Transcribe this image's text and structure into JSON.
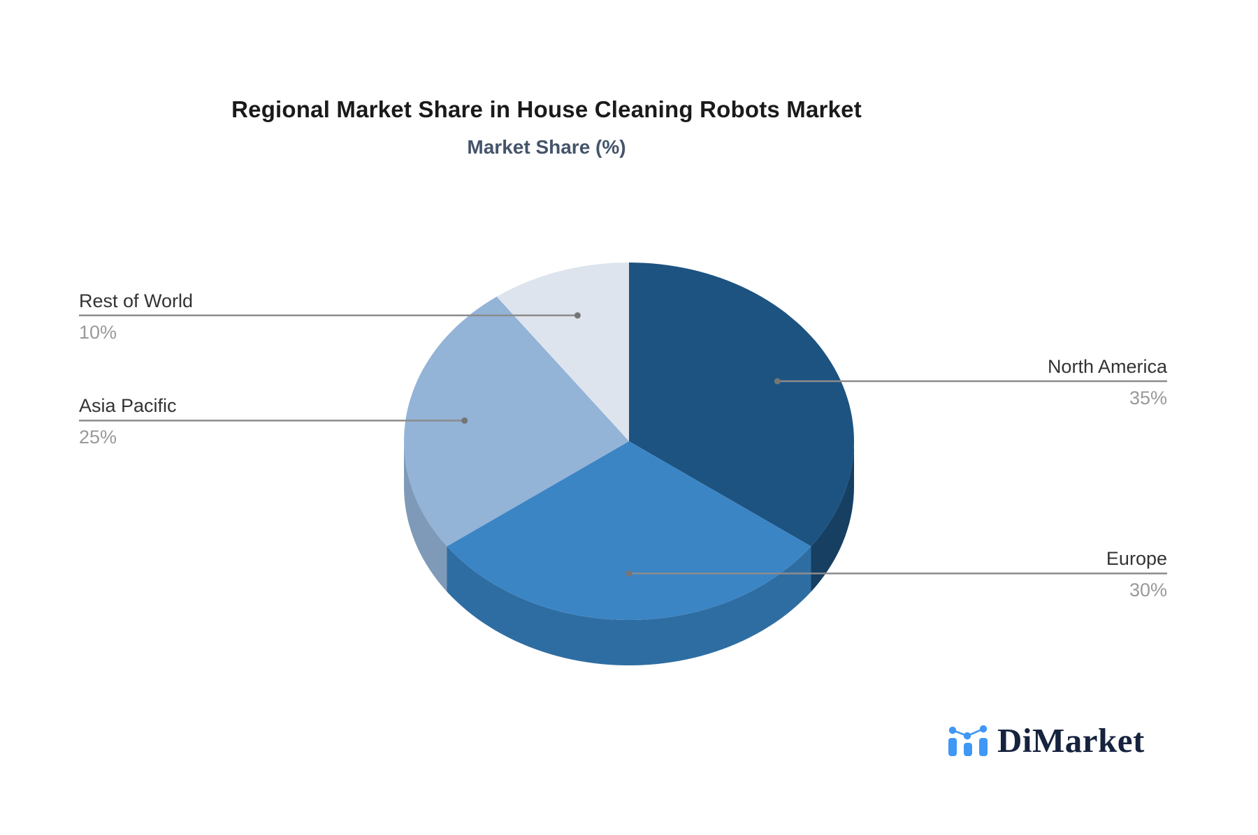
{
  "header": {
    "title": "Regional Market Share in House Cleaning Robots Market",
    "subtitle": "Market Share (%)"
  },
  "chart_data": {
    "type": "pie",
    "style": "3d",
    "title": "Regional Market Share in House Cleaning Robots Market",
    "subtitle": "Market Share (%)",
    "unit": "%",
    "categories": [
      "North America",
      "Europe",
      "Asia Pacific",
      "Rest of World"
    ],
    "values": [
      35,
      30,
      25,
      10
    ],
    "value_labels": [
      "35%",
      "30%",
      "25%",
      "10%"
    ],
    "colors": [
      "#1C5381",
      "#3C85C5",
      "#93B3D7",
      "#DDE4EE"
    ],
    "depth_colors": [
      "#163F62",
      "#2E6DA2",
      "#7E9AB8",
      "#C2CDDD"
    ],
    "label_sides": [
      "right",
      "right",
      "left",
      "left"
    ],
    "start_angle": "12-oclock",
    "direction": "clockwise",
    "legend": false,
    "line_color": "#8c8c8c",
    "dot_color": "#757575"
  },
  "logo": {
    "text": "DiMarket"
  }
}
